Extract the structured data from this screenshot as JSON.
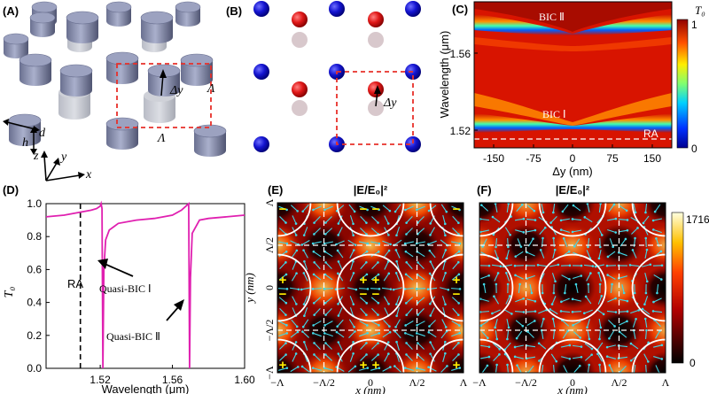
{
  "panels": {
    "A": {
      "label": "(A)",
      "d": "d",
      "h": "h",
      "dy": "Δy",
      "lam1": "Λ",
      "lam2": "Λ",
      "ax_x": "x",
      "ax_y": "y",
      "ax_z": "z"
    },
    "B": {
      "label": "(B)",
      "dy": "Δy"
    },
    "C": {
      "label": "(C)",
      "ylabel": "Wavelength (μm)",
      "xlabel": "Δy (nm)",
      "bic2": "BIC Ⅱ",
      "bic1": "BIC Ⅰ",
      "ra": "RA",
      "cb_title": "T₀",
      "cb_max": "1",
      "cb_min": "0",
      "xticks": [
        "-150",
        "-75",
        "0",
        "75",
        "150"
      ],
      "yticks": [
        "1.56",
        "1.52"
      ]
    },
    "D": {
      "label": "(D)",
      "ylabel": "T₀",
      "xlabel": "Wavelength (μm)",
      "ra": "RA",
      "q1": "Quasi-BIC Ⅰ",
      "q2": "Quasi-BIC Ⅱ",
      "xticks": [
        "1.52",
        "1.56",
        "1.60"
      ],
      "yticks": [
        "1.0",
        "0.8",
        "0.6",
        "0.4",
        "0.2",
        "0.0"
      ]
    },
    "E": {
      "label": "(E)",
      "title": "|E/E₀|²",
      "ylabel": "y (nm)",
      "xlabel": "x (nm)",
      "ticks": [
        "−Λ",
        "−Λ/2",
        "0",
        "Λ/2",
        "Λ"
      ]
    },
    "F": {
      "label": "(F)",
      "title": "|E/E₀|²",
      "xlabel": "x (nm)",
      "ticks": [
        "−Λ",
        "−Λ/2",
        "0",
        "Λ/2",
        "Λ"
      ],
      "cb_max": "1716",
      "cb_min": "0"
    }
  },
  "colors": {
    "magenta": "#e020b0",
    "red_dash": "#e8302a",
    "hot_dark": "#1a0000",
    "hot_red": "#c01000"
  },
  "chart_data": {
    "type": "line",
    "title": "",
    "xlabel": "Wavelength (μm)",
    "ylabel": "T₀",
    "xlim": [
      1.49,
      1.6
    ],
    "ylim": [
      0,
      1
    ],
    "ra_line_x": 1.509,
    "series": [
      {
        "name": "T0",
        "x": [
          1.49,
          1.5,
          1.51,
          1.515,
          1.518,
          1.52,
          1.5205,
          1.521,
          1.5215,
          1.522,
          1.523,
          1.525,
          1.53,
          1.54,
          1.55,
          1.56,
          1.565,
          1.568,
          1.569,
          1.5695,
          1.57,
          1.571,
          1.575,
          1.58,
          1.59,
          1.6
        ],
        "y": [
          0.92,
          0.93,
          0.95,
          0.96,
          0.97,
          0.985,
          1.0,
          0.97,
          0.0,
          0.6,
          0.78,
          0.84,
          0.88,
          0.9,
          0.91,
          0.93,
          0.96,
          0.99,
          1.0,
          0.0,
          0.55,
          0.82,
          0.9,
          0.91,
          0.92,
          0.93
        ]
      }
    ]
  }
}
